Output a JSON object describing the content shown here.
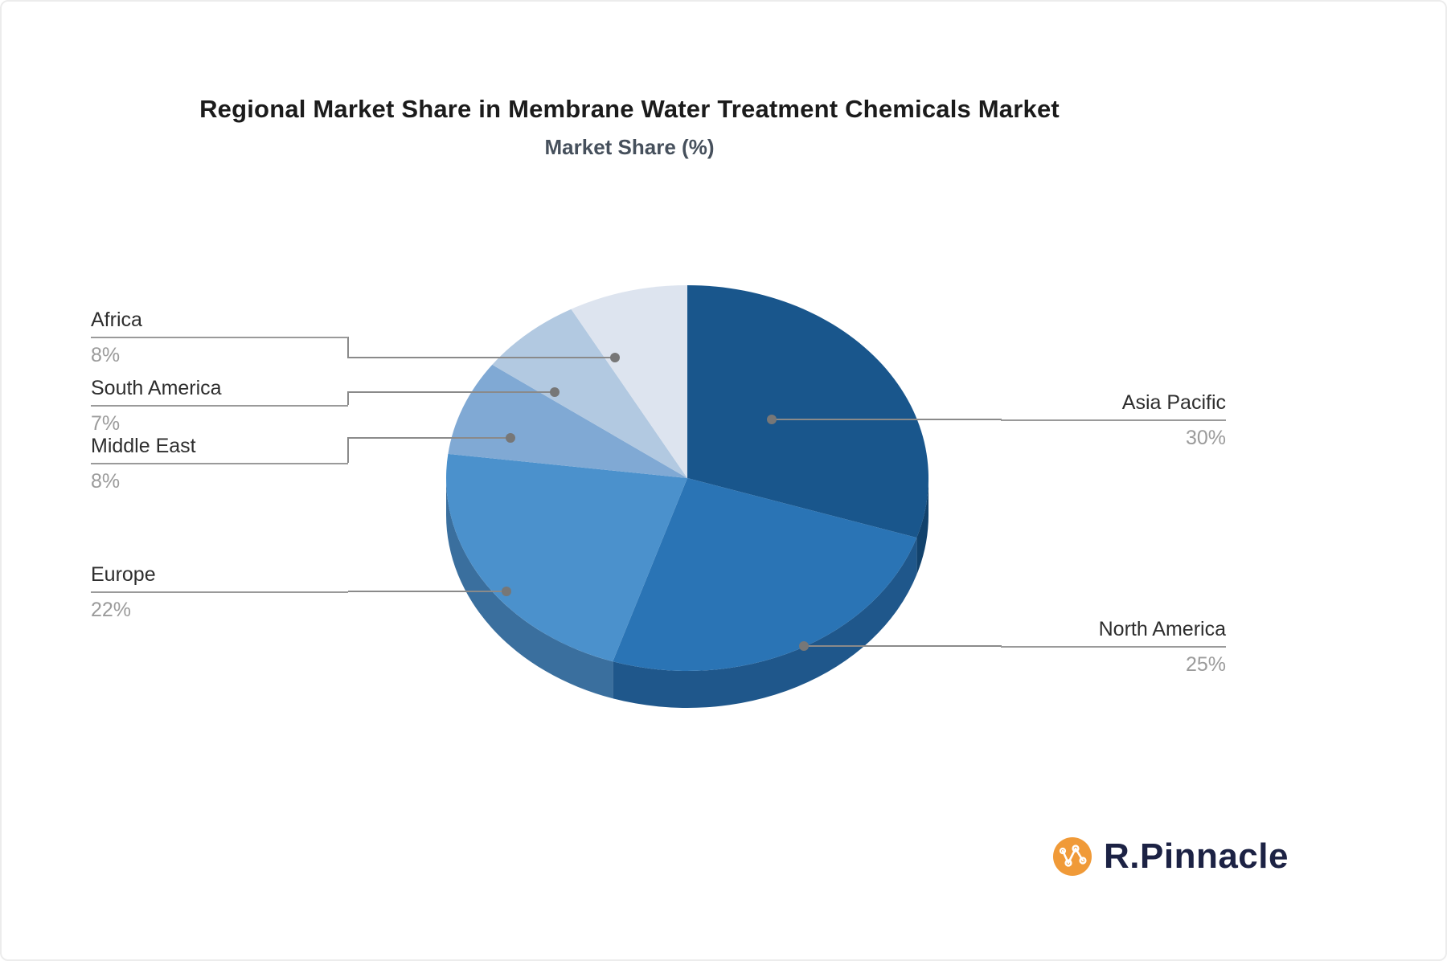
{
  "title": "Regional Market Share in Membrane Water Treatment Chemicals Market",
  "subtitle": "Market Share (%)",
  "branding": {
    "name": "R.Pinnacle",
    "icon": "network-nodes-icon",
    "icon_color": "#F09A38",
    "text_color": "#1C2244"
  },
  "chart_data": {
    "type": "pie",
    "style": "3d",
    "title": "Regional Market Share in Membrane Water Treatment Chemicals Market",
    "subtitle": "Market Share (%)",
    "unit": "%",
    "order": "clockwise-from-top",
    "legend_position": "callout-labels",
    "slices": [
      {
        "label": "Asia Pacific",
        "value": 30,
        "pct": "30%",
        "color": "#19568C",
        "side_color": "#12426C"
      },
      {
        "label": "North America",
        "value": 25,
        "pct": "25%",
        "color": "#2A74B5",
        "side_color": "#1F578B"
      },
      {
        "label": "Europe",
        "value": 22,
        "pct": "22%",
        "color": "#4B91CC",
        "side_color": "#3A6F9E"
      },
      {
        "label": "Middle East",
        "value": 8,
        "pct": "8%",
        "color": "#80A9D4",
        "side_color": "#6283A6"
      },
      {
        "label": "South America",
        "value": 7,
        "pct": "7%",
        "color": "#B2C9E1",
        "side_color": "#8FA4B9"
      },
      {
        "label": "Africa",
        "value": 8,
        "pct": "8%",
        "color": "#DDE4EF",
        "side_color": "#B5BFCC"
      }
    ],
    "leader_line_color": "#8A8A8A",
    "dot_color": "#777777",
    "label_color": "#2E2E2E",
    "value_color": "#9B9B9B"
  }
}
